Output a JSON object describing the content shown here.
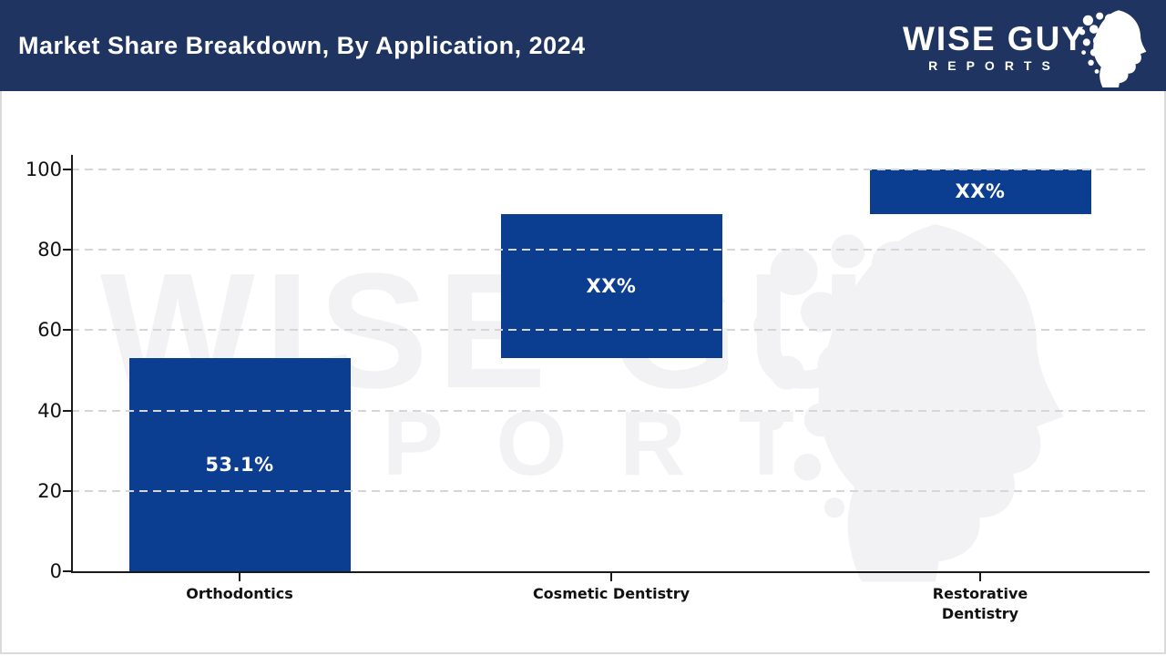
{
  "header": {
    "title": "Market Share Breakdown, By Application, 2024",
    "logo": {
      "line1": "WISE GUY",
      "line2": "REPORTS"
    }
  },
  "watermark": {
    "line1": "WISE GUY",
    "line2": "REPORTS"
  },
  "colors": {
    "header_bg": "#1f3461",
    "bar": "#0b3d91",
    "gridline": "#d6d6d6",
    "axis": "#1a1a1a",
    "watermark": "#f2f2f4",
    "bar_label": "#ffffff",
    "title_text": "#ffffff"
  },
  "chart_data": {
    "type": "bar",
    "subtype": "waterfall-stacked",
    "title": "Market Share Breakdown, By Application, 2024",
    "categories": [
      "Orthodontics",
      "Cosmetic Dentistry",
      "Restorative Dentistry"
    ],
    "tick_labels": [
      "Orthodontics",
      "Cosmetic Dentistry",
      "Restorative\nDentistry"
    ],
    "series": [
      {
        "name": "Market Share %",
        "segments": [
          {
            "category": "Orthodontics",
            "start": 0,
            "end": 53.1,
            "label": "53.1%"
          },
          {
            "category": "Cosmetic Dentistry",
            "start": 53.1,
            "end": 88.9,
            "label": "XX%"
          },
          {
            "category": "Restorative Dentistry",
            "start": 88.9,
            "end": 100,
            "label": "XX%"
          }
        ]
      }
    ],
    "xlabel": "",
    "ylabel": "",
    "ylim": [
      0,
      100
    ],
    "yticks": [
      0,
      20,
      40,
      60,
      80,
      100
    ],
    "grid": "horizontal dashed",
    "legend": "none"
  }
}
